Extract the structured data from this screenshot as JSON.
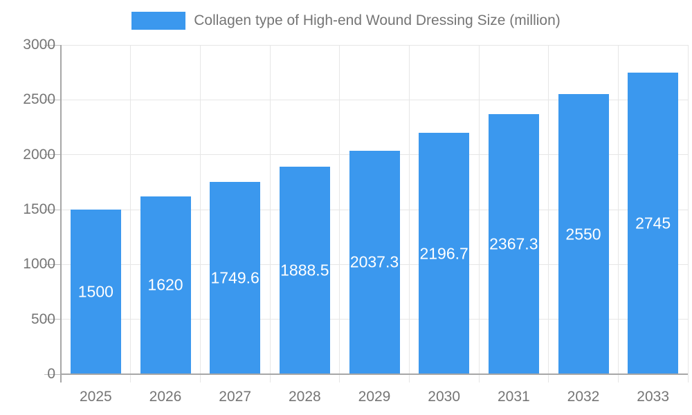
{
  "chart_data": {
    "type": "bar",
    "title": "Collagen type of High-end Wound Dressing Size (million)",
    "categories": [
      "2025",
      "2026",
      "2027",
      "2028",
      "2029",
      "2030",
      "2031",
      "2032",
      "2033"
    ],
    "series": [
      {
        "name": "Collagen type of High-end Wound Dressing Size (million)",
        "values": [
          1500,
          1620,
          1749.6,
          1888.5,
          2037.3,
          2196.7,
          2367.3,
          2550,
          2745
        ],
        "value_labels": [
          "1500",
          "1620",
          "1749.6",
          "1888.5",
          "2037.3",
          "2196.7",
          "2367.3",
          "2550",
          "2745"
        ]
      }
    ],
    "xlabel": "",
    "ylabel": "",
    "ylim": [
      0,
      3000
    ],
    "yticks": [
      0,
      500,
      1000,
      1500,
      2000,
      2500,
      3000
    ],
    "grid": true,
    "legend_position": "top-center",
    "colors": {
      "bar": "#3b98ee",
      "grid": "#e6e6e6",
      "axis": "#a6a6a6",
      "ytick_dash": "#bdbdbd",
      "tick_label": "#757575",
      "value_label": "#ffffff",
      "background": "#ffffff"
    }
  }
}
